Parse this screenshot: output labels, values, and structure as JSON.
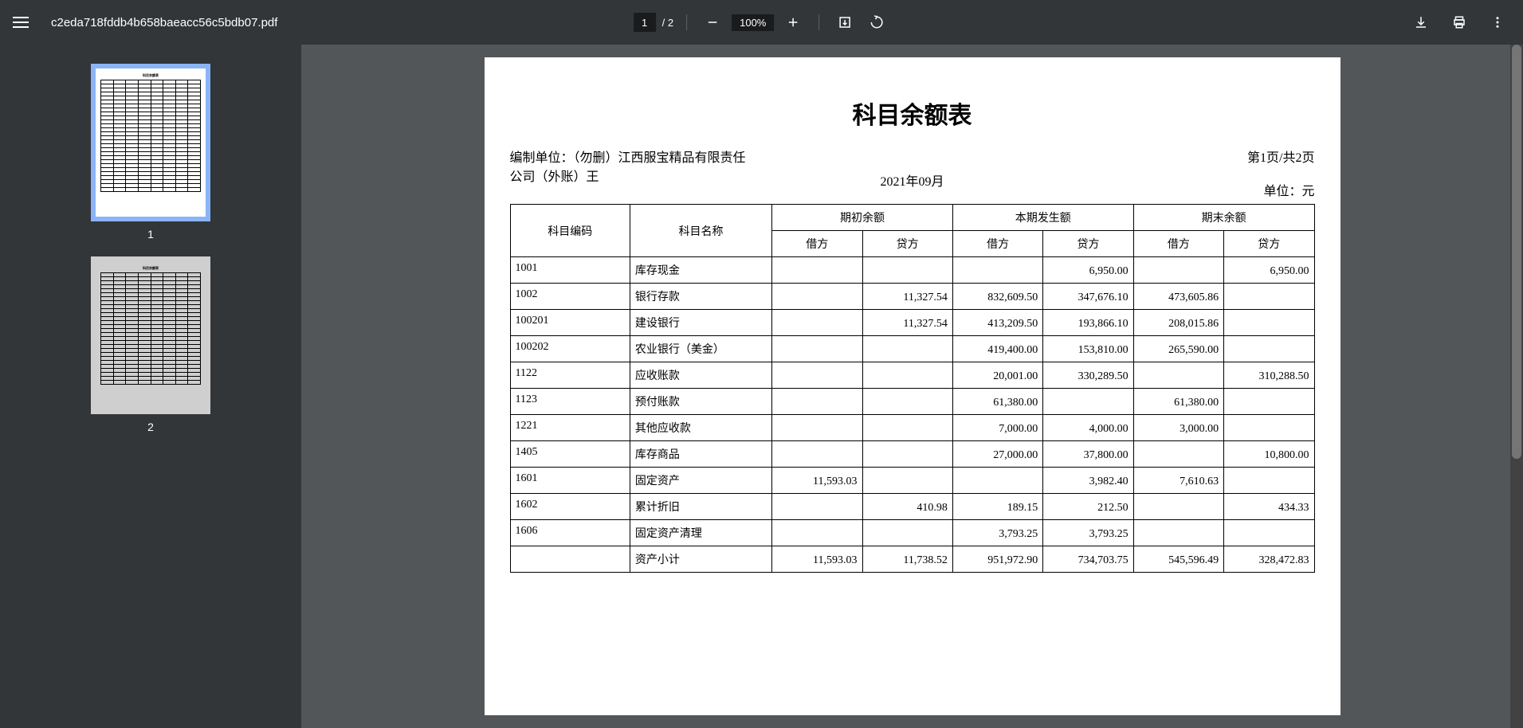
{
  "toolbar": {
    "filename": "c2eda718fddb4b658baeacc56c5bdb07.pdf",
    "current_page": "1",
    "page_sep": "/",
    "total_pages": "2",
    "zoom": "100%"
  },
  "thumbs": [
    {
      "label": "1",
      "selected": true
    },
    {
      "label": "2",
      "selected": false
    }
  ],
  "document": {
    "title": "科目余额表",
    "org_label": "编制单位：",
    "org_value": "（勿删）江西服宝精品有限责任公司（外账）王",
    "period": "2021年09月",
    "page_info": "第1页/共2页",
    "unit_label": "单位：元",
    "table": {
      "columns": {
        "code": "科目编码",
        "name": "科目名称",
        "group1": "期初余额",
        "group2": "本期发生额",
        "group3": "期末余额",
        "debit": "借方",
        "credit": "贷方"
      },
      "rows": [
        {
          "code": "1001",
          "name": "库存现金",
          "c1": "",
          "c2": "",
          "c3": "",
          "c4": "6,950.00",
          "c5": "",
          "c6": "6,950.00"
        },
        {
          "code": "1002",
          "name": "银行存款",
          "c1": "",
          "c2": "11,327.54",
          "c3": "832,609.50",
          "c4": "347,676.10",
          "c5": "473,605.86",
          "c6": ""
        },
        {
          "code": "100201",
          "name": "建设银行",
          "c1": "",
          "c2": "11,327.54",
          "c3": "413,209.50",
          "c4": "193,866.10",
          "c5": "208,015.86",
          "c6": ""
        },
        {
          "code": "100202",
          "name": "农业银行（美金）",
          "c1": "",
          "c2": "",
          "c3": "419,400.00",
          "c4": "153,810.00",
          "c5": "265,590.00",
          "c6": ""
        },
        {
          "code": "1122",
          "name": "应收账款",
          "c1": "",
          "c2": "",
          "c3": "20,001.00",
          "c4": "330,289.50",
          "c5": "",
          "c6": "310,288.50"
        },
        {
          "code": "1123",
          "name": "预付账款",
          "c1": "",
          "c2": "",
          "c3": "61,380.00",
          "c4": "",
          "c5": "61,380.00",
          "c6": ""
        },
        {
          "code": "1221",
          "name": "其他应收款",
          "c1": "",
          "c2": "",
          "c3": "7,000.00",
          "c4": "4,000.00",
          "c5": "3,000.00",
          "c6": ""
        },
        {
          "code": "1405",
          "name": "库存商品",
          "c1": "",
          "c2": "",
          "c3": "27,000.00",
          "c4": "37,800.00",
          "c5": "",
          "c6": "10,800.00"
        },
        {
          "code": "1601",
          "name": "固定资产",
          "c1": "11,593.03",
          "c2": "",
          "c3": "",
          "c4": "3,982.40",
          "c5": "7,610.63",
          "c6": ""
        },
        {
          "code": "1602",
          "name": "累计折旧",
          "c1": "",
          "c2": "410.98",
          "c3": "189.15",
          "c4": "212.50",
          "c5": "",
          "c6": "434.33"
        },
        {
          "code": "1606",
          "name": "固定资产清理",
          "c1": "",
          "c2": "",
          "c3": "3,793.25",
          "c4": "3,793.25",
          "c5": "",
          "c6": ""
        },
        {
          "code": "",
          "name": "资产小计",
          "c1": "11,593.03",
          "c2": "11,738.52",
          "c3": "951,972.90",
          "c4": "734,703.75",
          "c5": "545,596.49",
          "c6": "328,472.83"
        }
      ]
    }
  }
}
